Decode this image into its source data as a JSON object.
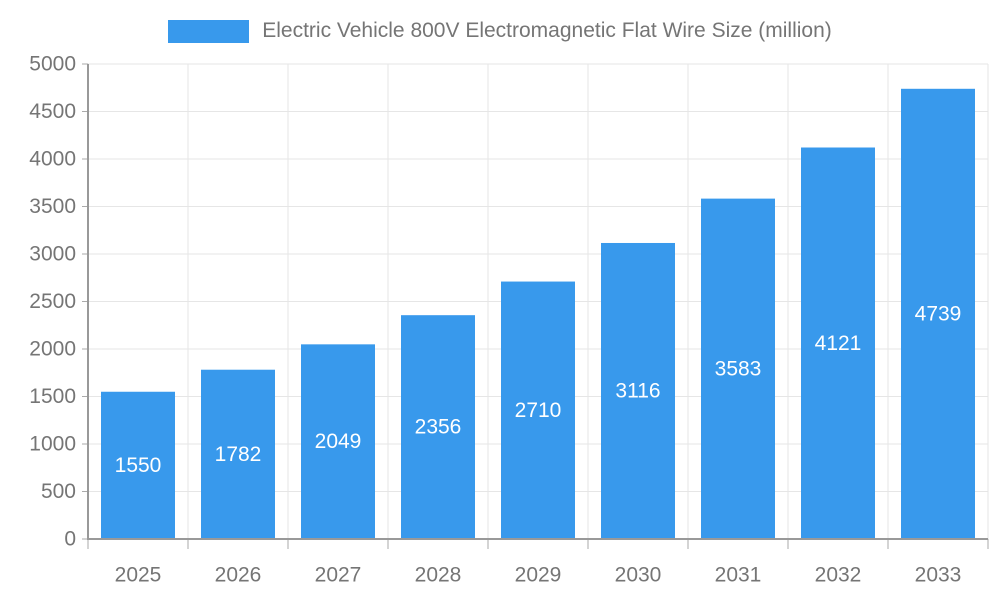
{
  "legend": {
    "label": "Electric Vehicle 800V Electromagnetic Flat Wire Size (million)"
  },
  "colors": {
    "bar": "#3899EC",
    "grid_line": "#E6E6E6",
    "axis_line": "#999999",
    "tick_line": "#AAAAAA",
    "axis_text": "#757575",
    "legend_text": "#757575",
    "bar_label_text": "#FFFFFF",
    "background": "#FFFFFF"
  },
  "chart_data": {
    "type": "bar",
    "title": "Electric Vehicle 800V Electromagnetic Flat Wire Size (million)",
    "categories": [
      "2025",
      "2026",
      "2027",
      "2028",
      "2029",
      "2030",
      "2031",
      "2032",
      "2033"
    ],
    "series": [
      {
        "name": "Electric Vehicle 800V Electromagnetic Flat Wire Size (million)",
        "values": [
          1550,
          1782,
          2049,
          2356,
          2710,
          3116,
          3583,
          4121,
          4739
        ]
      }
    ],
    "value_labels": [
      "1550",
      "1782",
      "2049",
      "2356",
      "2710",
      "3116",
      "3583",
      "4121",
      "4739"
    ],
    "xlabel": "",
    "ylabel": "",
    "ylim": [
      0,
      5000
    ],
    "yticks": [
      0,
      500,
      1000,
      1500,
      2000,
      2500,
      3000,
      3500,
      4000,
      4500,
      5000
    ],
    "ytick_labels": [
      "0",
      "500",
      "1000",
      "1500",
      "2000",
      "2500",
      "3000",
      "3500",
      "4000",
      "4500",
      "5000"
    ],
    "grid": "on",
    "legend_position": "top-center",
    "value_label_position": "inside-center"
  }
}
